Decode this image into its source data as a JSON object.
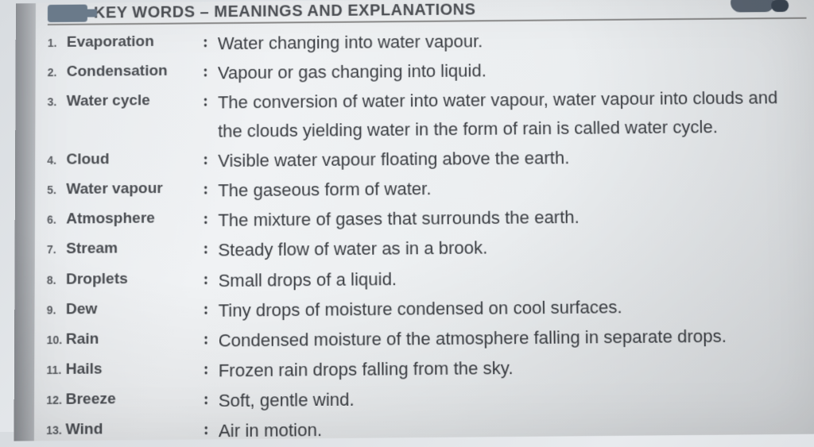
{
  "header": {
    "title": "KEY WORDS – MEANINGS AND EXPLANATIONS"
  },
  "definitions": [
    {
      "num": "1.",
      "term": "Evaporation",
      "def": "Water changing into water vapour."
    },
    {
      "num": "2.",
      "term": "Condensation",
      "def": "Vapour or gas changing into liquid."
    },
    {
      "num": "3.",
      "term": "Water cycle",
      "def": "The conversion of water into water vapour, water vapour into clouds and the clouds yielding water in the form of rain is called water cycle."
    },
    {
      "num": "4.",
      "term": "Cloud",
      "def": "Visible water vapour floating above the earth."
    },
    {
      "num": "5.",
      "term": "Water vapour",
      "def": "The gaseous form of water."
    },
    {
      "num": "6.",
      "term": "Atmosphere",
      "def": "The mixture of gases that surrounds the earth."
    },
    {
      "num": "7.",
      "term": "Stream",
      "def": "Steady flow of water as in a brook."
    },
    {
      "num": "8.",
      "term": "Droplets",
      "def": "Small drops of a liquid."
    },
    {
      "num": "9.",
      "term": "Dew",
      "def": "Tiny drops of moisture condensed on cool surfaces."
    },
    {
      "num": "10.",
      "term": "Rain",
      "def": "Condensed moisture of the atmosphere falling in separate drops."
    },
    {
      "num": "11.",
      "term": "Hails",
      "def": "Frozen rain drops falling from the sky."
    },
    {
      "num": "12.",
      "term": "Breeze",
      "def": "Soft, gentle wind."
    },
    {
      "num": "13.",
      "term": "Wind",
      "def": "Air in motion."
    }
  ],
  "styling": {
    "page_bg": "#e8ebee",
    "text_color": "#3a3d42",
    "term_color": "#4a4d52",
    "header_border": "#888888",
    "spine_color": "#8a8d92",
    "icon_color": "#6a7a8a",
    "cloud_color": "#5a6572",
    "term_fontsize": 19,
    "def_fontsize": 22,
    "header_fontsize": 20
  }
}
